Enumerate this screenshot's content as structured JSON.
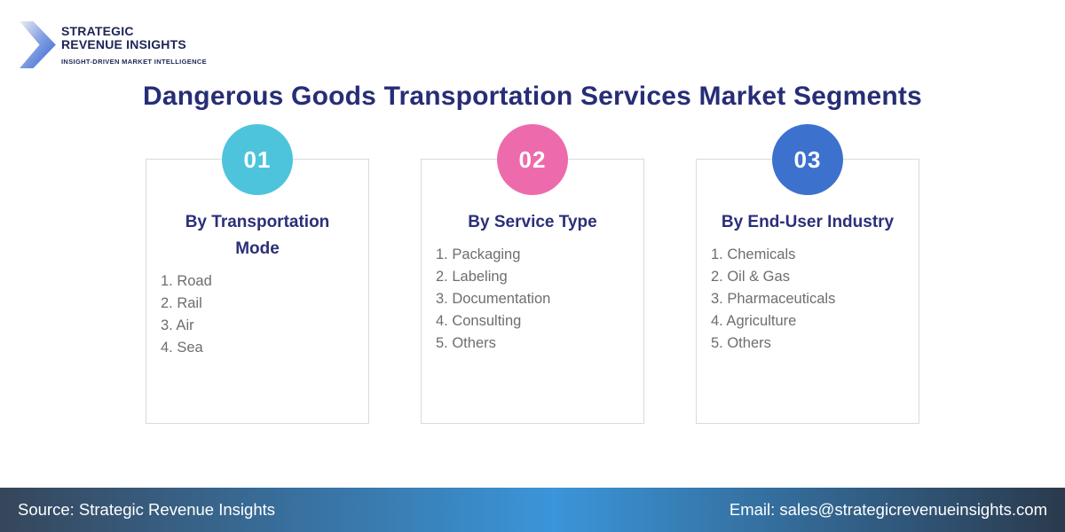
{
  "brand": {
    "name_line1": "STRATEGIC",
    "name_line2": "REVENUE INSIGHTS",
    "tagline": "INSIGHT-DRIVEN MARKET INTELLIGENCE",
    "logo_gradient": {
      "start": "#ecedf0",
      "end": "#2c60d5"
    },
    "text_color": "#1d2554"
  },
  "title": "Dangerous Goods Transportation Services Market Segments",
  "title_color": "#272d76",
  "cards": [
    {
      "number": "01",
      "badge_color": "#4dc4dc",
      "title": "By Transportation Mode",
      "items": [
        "Road",
        "Rail",
        "Air",
        "Sea"
      ]
    },
    {
      "number": "02",
      "badge_color": "#ed6bac",
      "title": "By Service Type",
      "items": [
        "Packaging",
        "Labeling",
        "Documentation",
        "Consulting",
        "Others"
      ]
    },
    {
      "number": "03",
      "badge_color": "#3d71ce",
      "title": "By End-User Industry",
      "items": [
        "Chemicals",
        "Oil & Gas",
        "Pharmaceuticals",
        "Agriculture",
        "Others"
      ]
    }
  ],
  "footer": {
    "source": "Source: Strategic Revenue Insights",
    "email": "Email: sales@strategicrevenueinsights.com",
    "gradient": {
      "left": "#36465b",
      "center": "#3b95d9",
      "right": "#2b3a4d"
    }
  }
}
